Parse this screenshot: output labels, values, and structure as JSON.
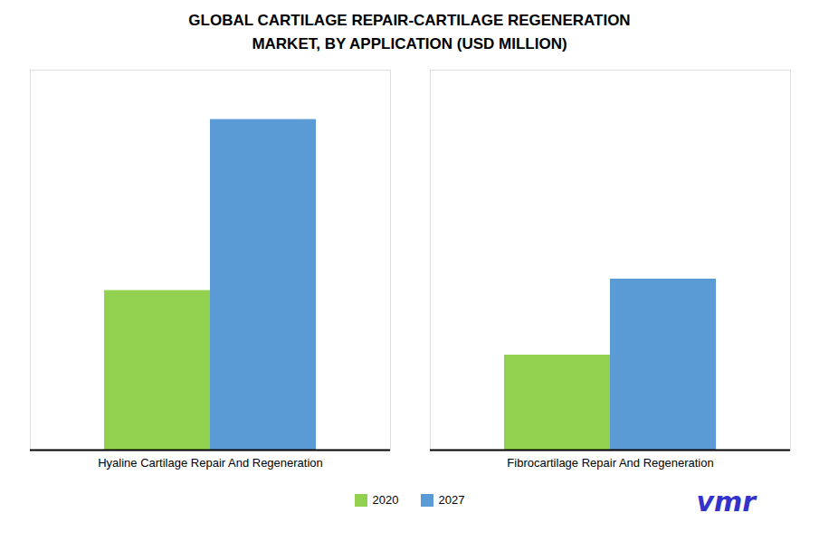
{
  "chart_data": {
    "type": "bar",
    "title": "GLOBAL CARTILAGE REPAIR-CARTILAGE REGENERATION\nMARKET, BY APPLICATION (USD MILLION)",
    "categories": [
      "Hyaline Cartilage Repair And Regeneration",
      "Fibrocartilage Repair And Regeneration"
    ],
    "series": [
      {
        "name": "2020",
        "color": "#92D050",
        "values": [
          420,
          250
        ]
      },
      {
        "name": "2027",
        "color": "#5B9BD5",
        "values": [
          870,
          450
        ]
      }
    ],
    "ylim": [
      0,
      1000
    ],
    "grid": false,
    "legend": "bottom",
    "tick_labels": "x",
    "annotations": [
      {
        "text": "vmr",
        "color": "#3333CC"
      }
    ]
  }
}
